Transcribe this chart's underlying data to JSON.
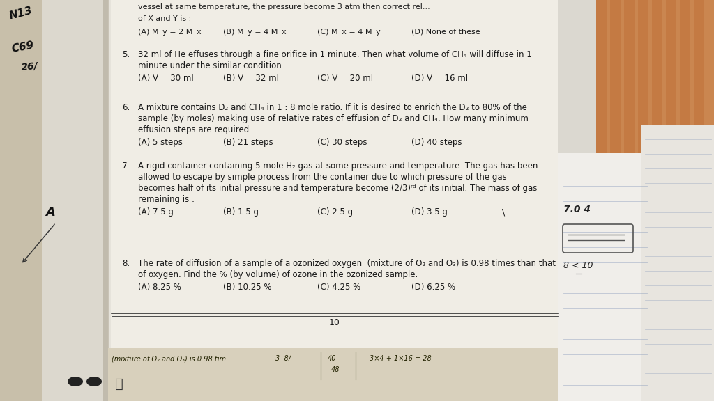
{
  "bg_paper_color": "#e8e0d0",
  "left_page_color": "#ddd5c5",
  "right_notebook_color": "#e0ddd5",
  "main_paper_color": "#f2efe8",
  "text_color": "#1a1a1a",
  "page_number": "10",
  "top_cut_text": "vessel at same temperature, the pressure become 3 atm then correct rel...",
  "pre_options": [
    "(A) M_y = 2 M_x",
    "(B) M_y = 4 M_x",
    "(C) M_x = 4 M_y",
    "(D) None of these"
  ],
  "q5_text_line1": "32 ml of He effuses through a fine orifice in 1 minute. Then what volume of CH₄ will diffuse in 1",
  "q5_text_line2": "minute under the similar condition.",
  "q5_opts": [
    "(A) V = 30 ml",
    "(B) V = 32 ml",
    "(C) V = 20 ml",
    "(D) V = 16 ml"
  ],
  "q6_text_line1": "A mixture contains D₂ and CH₄ in 1 : 8 mole ratio. If it is desired to enrich the D₂ to 80% of the",
  "q6_text_line2": "sample (by moles) making use of relative rates of effusion of D₂ and CH₄. How many minimum",
  "q6_text_line3": "effusion steps are required.",
  "q6_opts": [
    "(A) 5 steps",
    "(B) 21 steps",
    "(C) 30 steps",
    "(D) 40 steps"
  ],
  "q7_text_line1": "A rigid container containing 5 mole H₂ gas at some pressure and temperature. The gas has been",
  "q7_text_line2": "allowed to escape by simple process from the container due to which pressure of the gas",
  "q7_text_line3": "becomes half of its initial pressure and temperature become (2/3)ʳᵈ of its initial. The mass of gas",
  "q7_text_line4": "remaining is :",
  "q7_opts": [
    "(A) 7.5 g",
    "(B) 1.5 g",
    "(C) 2.5 g",
    "(D) 3.5 g"
  ],
  "q8_text_line1": "The rate of diffusion of a sample of a ozonized oxygen  (mixture of O₂ and O₃) is 0.98 times than that",
  "q8_text_line2": "of oxygen. Find the % (by volume) of ozone in the ozonized sample.",
  "q8_opts": [
    "(A) 8.25 %",
    "(B) 10.25 %",
    "(C) 4.25 %",
    "(D) 6.25 %"
  ],
  "left_handwriting": [
    "N13",
    "C69",
    "26/",
    "A"
  ],
  "right_handwriting_1": "7.0 4",
  "right_handwriting_2": "8 < 10",
  "bottom_text": "(mixture of O₂ and O₃) is 0.98 tim",
  "bottom_math": "3  8/    40      3×4 + 1×16 = 28 –",
  "bottom_math2": "48"
}
